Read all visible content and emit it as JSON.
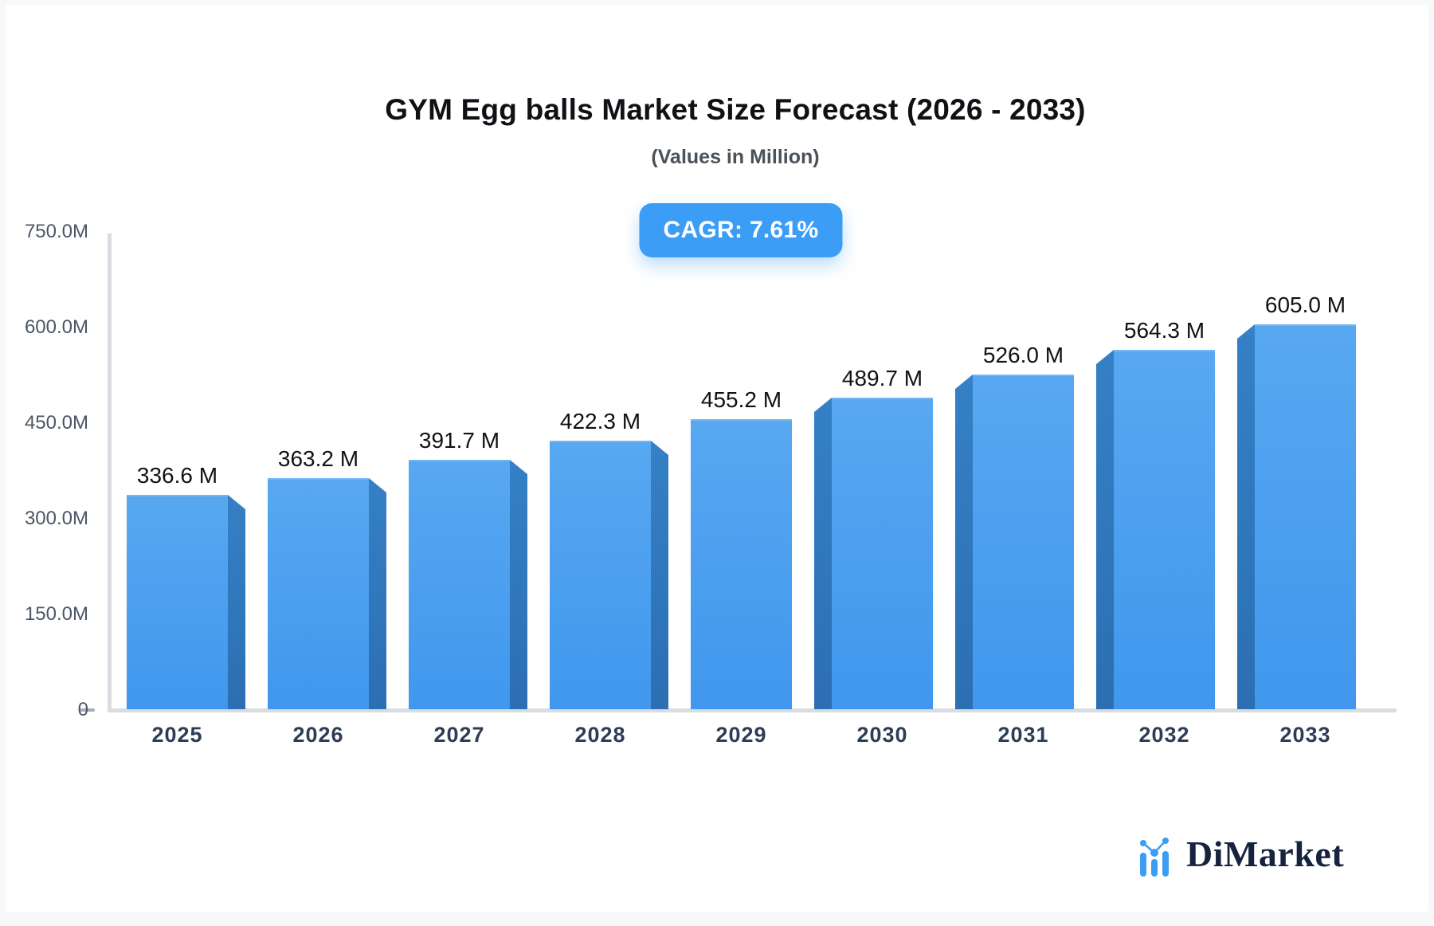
{
  "header": {
    "title": "GYM Egg balls Market Size Forecast (2026 - 2033)",
    "subtitle": "(Values in Million)"
  },
  "badge": {
    "label": "CAGR: 7.61%",
    "background": "#3b9df6"
  },
  "chart_data": {
    "type": "bar",
    "style": "3d-perspective",
    "title": "GYM Egg balls Market Size Forecast (2026 - 2033)",
    "subtitle": "(Values in Million)",
    "unit": "Million",
    "categories": [
      "2025",
      "2026",
      "2027",
      "2028",
      "2029",
      "2030",
      "2031",
      "2032",
      "2033"
    ],
    "values": [
      336.6,
      363.2,
      391.7,
      422.3,
      455.2,
      489.7,
      526.0,
      564.3,
      605.0
    ],
    "value_labels": [
      "336.6 M",
      "363.2 M",
      "391.7 M",
      "422.3 M",
      "455.2 M",
      "489.7 M",
      "526.0 M",
      "564.3 M",
      "605.0 M"
    ],
    "ylim": [
      0,
      750
    ],
    "y_ticks": [
      "750.0M",
      "600.0M",
      "450.0M",
      "300.0M",
      "150.0M",
      "0"
    ],
    "y_tick_values": [
      750,
      600,
      450,
      300,
      150,
      0
    ],
    "grid": false,
    "legend": "none",
    "colors": {
      "bar_face_top": "#58a8f1",
      "bar_face_bottom": "#4097ed",
      "bar_side": "#2e74b6",
      "axis": "#d9dce1"
    }
  },
  "logo": {
    "text": "DiMarket",
    "icon": "bar-line-chart-icon",
    "text_color": "#16233e",
    "icon_color": "#3b9df6"
  }
}
